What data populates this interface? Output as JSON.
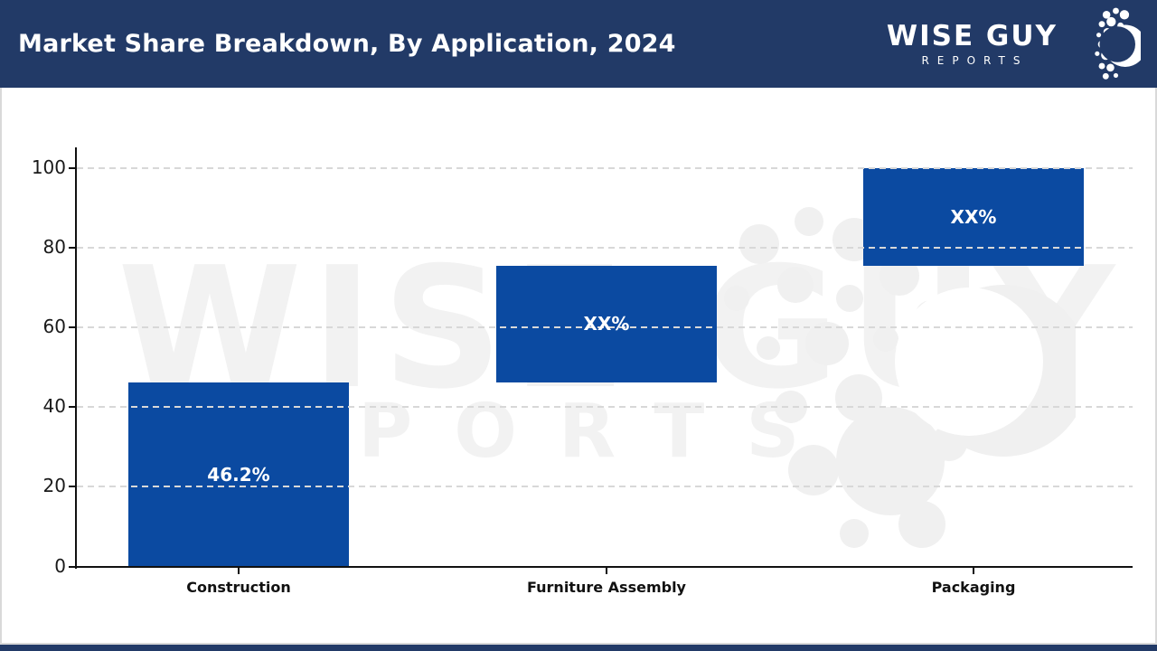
{
  "header": {
    "title": "Market Share Breakdown, By Application, 2024",
    "logo": {
      "line1": "WISE GUY",
      "line2": "REPORTS"
    }
  },
  "watermark": {
    "line1": "WISE GUY",
    "line2": "REPORTS"
  },
  "chart_data": {
    "type": "bar",
    "subtype": "floating-segment (cumulative market share)",
    "title": "Market Share Breakdown, By Application, 2024",
    "categories": [
      "Construction",
      "Furniture Assembly",
      "Packaging"
    ],
    "segments": [
      {
        "category": "Construction",
        "start": 0,
        "end": 46.2,
        "label": "46.2%"
      },
      {
        "category": "Furniture Assembly",
        "start": 46.2,
        "end": 75.5,
        "label": "XX%"
      },
      {
        "category": "Packaging",
        "start": 75.5,
        "end": 100,
        "label": "XX%"
      }
    ],
    "yticks": [
      0,
      20,
      40,
      60,
      80,
      100
    ],
    "ylim": [
      0,
      100
    ],
    "xlabel": "",
    "ylabel": "",
    "grid": "horizontal dashed",
    "legend": "none",
    "bar_color": "#0b4aa1",
    "bar_label_color": "#ffffff",
    "axis_color": "#111111",
    "grid_color": "#d8d8d8",
    "header_color": "#223a67"
  }
}
